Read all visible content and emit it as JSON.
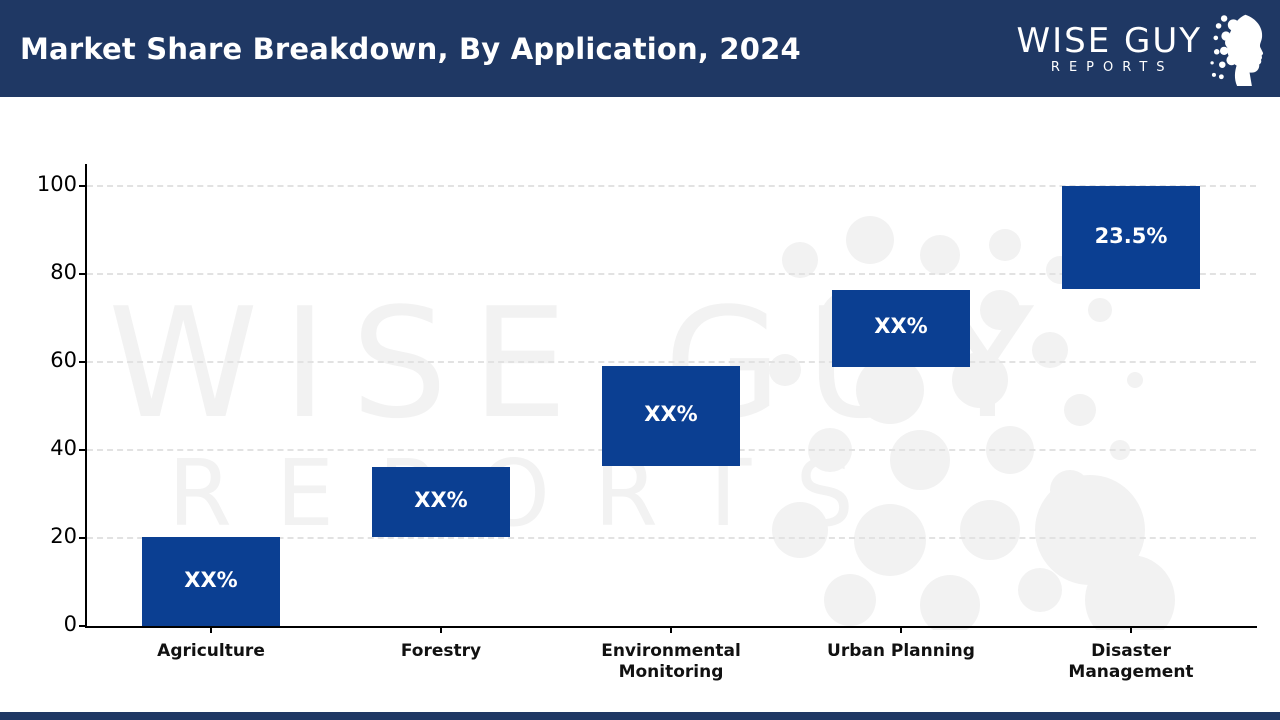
{
  "header": {
    "title": "Market Share Breakdown, By Application, 2024",
    "bg_color": "#1f3864",
    "logo": {
      "line1": "WISE GUY",
      "line2": "REPORTS"
    }
  },
  "watermark": {
    "line1": "WISE GUY",
    "line2": "REPORTS"
  },
  "chart_data": {
    "type": "bar",
    "subtype": "waterfall",
    "title": "Market Share Breakdown, By Application, 2024",
    "categories": [
      "Agriculture",
      "Forestry",
      "Environmental Monitoring",
      "Urban Planning",
      "Disaster Management"
    ],
    "category_label_lines": [
      [
        "Agriculture"
      ],
      [
        "Forestry"
      ],
      [
        "Environmental",
        "Monitoring"
      ],
      [
        "Urban Planning"
      ],
      [
        "Disaster",
        "Management"
      ]
    ],
    "segments": [
      {
        "category": "Agriculture",
        "start": 0,
        "end": 20.2,
        "label": "XX%"
      },
      {
        "category": "Forestry",
        "start": 20.2,
        "end": 36.1,
        "label": "XX%"
      },
      {
        "category": "Environmental Monitoring",
        "start": 36.4,
        "end": 59.1,
        "label": "XX%"
      },
      {
        "category": "Urban Planning",
        "start": 58.9,
        "end": 76.4,
        "label": "XX%"
      },
      {
        "category": "Disaster Management",
        "start": 76.5,
        "end": 100,
        "label": "23.5%"
      }
    ],
    "yticks": [
      0,
      20,
      40,
      60,
      80,
      100
    ],
    "ylim": [
      0,
      105
    ],
    "xlabel": "",
    "ylabel": "",
    "grid": "horizontal-dashed",
    "legend": "none",
    "bar_color": "#0b3f92",
    "bar_label_color": "#ffffff",
    "axis_color": "#000000",
    "gridline_color": "#e2e2e2"
  }
}
